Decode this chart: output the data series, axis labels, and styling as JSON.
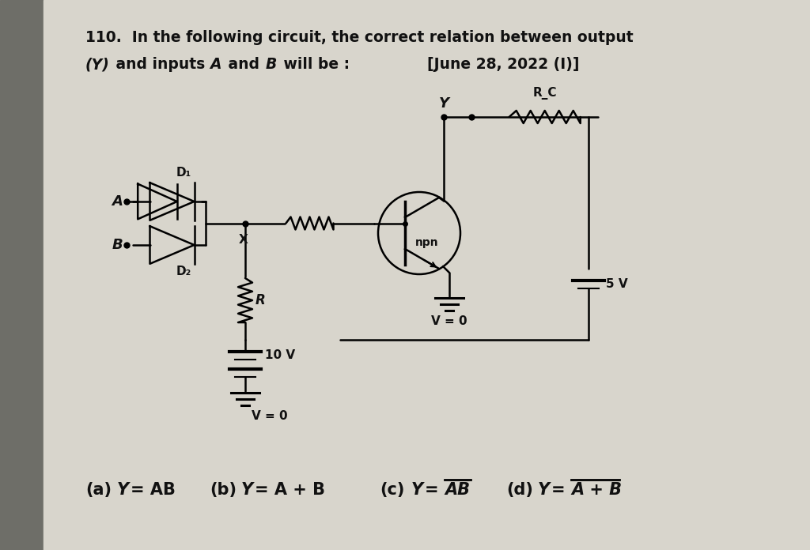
{
  "bg_color": "#e8e5de",
  "page_color": "#dddbd3",
  "left_edge_color": "#888880",
  "title_line1": "110.  In the following circuit, the correct relation between output",
  "title_line2_part1": "        (Y) and inputs ",
  "title_line2_italic": "A",
  "title_line2_part2": " and ",
  "title_line2_italic2": "B",
  "title_line2_part3": " will be :",
  "title_date": "[June 28, 2022 (I)]",
  "text_color": "#111111",
  "fig_width": 10.24,
  "fig_height": 6.96
}
